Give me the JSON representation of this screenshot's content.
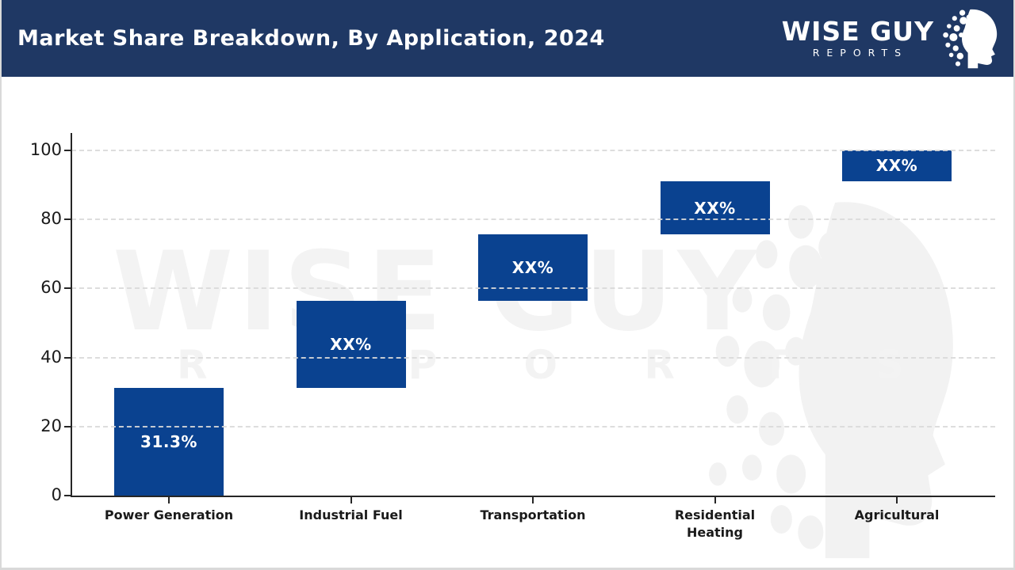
{
  "header": {
    "title": "Market Share Breakdown, By Application, 2024",
    "background_color": "#1f3864",
    "logo": {
      "line1": "WISE GUY",
      "line2": "REPORTS",
      "face_icon": "dotted-head-profile-icon"
    }
  },
  "watermark": {
    "line1": "WISE GUY",
    "line2": "R E P O R T S",
    "face_icon": "dotted-head-profile-watermark",
    "color": "#f3f3f3"
  },
  "chart_data": {
    "type": "bar",
    "subtype": "waterfall",
    "title": "Market Share Breakdown, By Application, 2024",
    "categories": [
      "Power Generation",
      "Industrial Fuel",
      "Transportation",
      "Residential Heating",
      "Agricultural"
    ],
    "bars": [
      {
        "category": "Power Generation",
        "start": 0,
        "end": 31.3,
        "label": "31.3%"
      },
      {
        "category": "Industrial Fuel",
        "start": 31.3,
        "end": 56.4,
        "label": "XX%"
      },
      {
        "category": "Transportation",
        "start": 56.4,
        "end": 75.6,
        "label": "XX%"
      },
      {
        "category": "Residential Heating",
        "start": 75.6,
        "end": 91.1,
        "label": "XX%"
      },
      {
        "category": "Agricultural",
        "start": 91.1,
        "end": 100,
        "label": "XX%"
      }
    ],
    "yticks": [
      0,
      20,
      40,
      60,
      80,
      100
    ],
    "ylim": [
      0,
      105
    ],
    "xlabel": "",
    "ylabel": "",
    "legend": "none",
    "grid": "horizontal-dashed",
    "grid_color": "#d9d9d9",
    "bar_color": "#0a4290",
    "bar_label_color": "#ffffff",
    "axis_color": "#262626"
  }
}
